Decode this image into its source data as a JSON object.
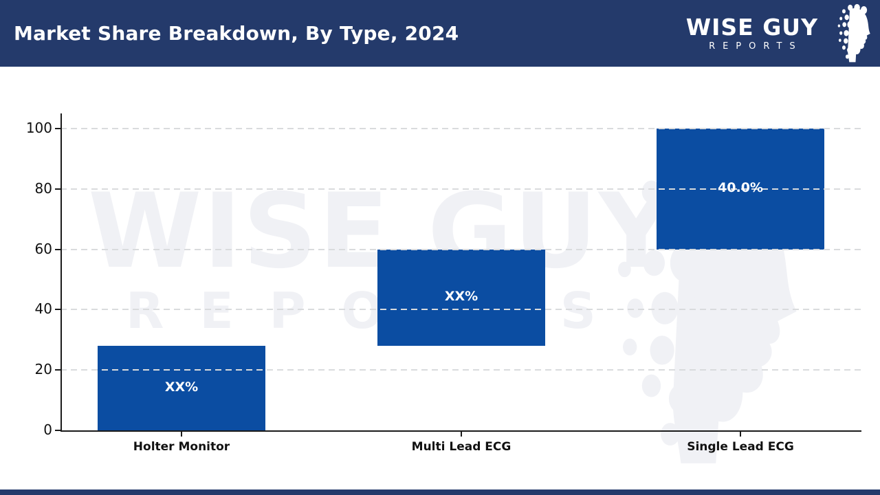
{
  "header": {
    "title": "Market Share Breakdown, By Type, 2024",
    "logo": {
      "line1": "WISE GUY",
      "line2": "REPORTS"
    }
  },
  "watermark": {
    "line1": "WISE GUY",
    "line2": "REPORTS"
  },
  "chart_data": {
    "type": "bar",
    "subtype": "waterfall",
    "title": "Market Share Breakdown, By Type, 2024",
    "categories": [
      "Holter Monitor",
      "Multi Lead ECG",
      "Single Lead ECG"
    ],
    "segments": [
      {
        "category": "Holter Monitor",
        "start": 0,
        "end": 28,
        "label": "XX%"
      },
      {
        "category": "Multi Lead ECG",
        "start": 28,
        "end": 60,
        "label": "XX%"
      },
      {
        "category": "Single Lead ECG",
        "start": 60,
        "end": 100,
        "label": "40.0%"
      }
    ],
    "yticks": [
      0,
      20,
      40,
      60,
      80,
      100
    ],
    "ylim": [
      0,
      105
    ],
    "grid": "horizontal-dashed-over-bars",
    "legend": "none",
    "xlabel": "",
    "ylabel": ""
  },
  "colors": {
    "header_bg": "#243a6b",
    "bar": "#0b4da2",
    "bar_label": "#ffffff",
    "grid": "#d9dbdd",
    "axis": "#1a1a1a",
    "watermark": "#f0f1f5",
    "title_text": "#ffffff"
  }
}
